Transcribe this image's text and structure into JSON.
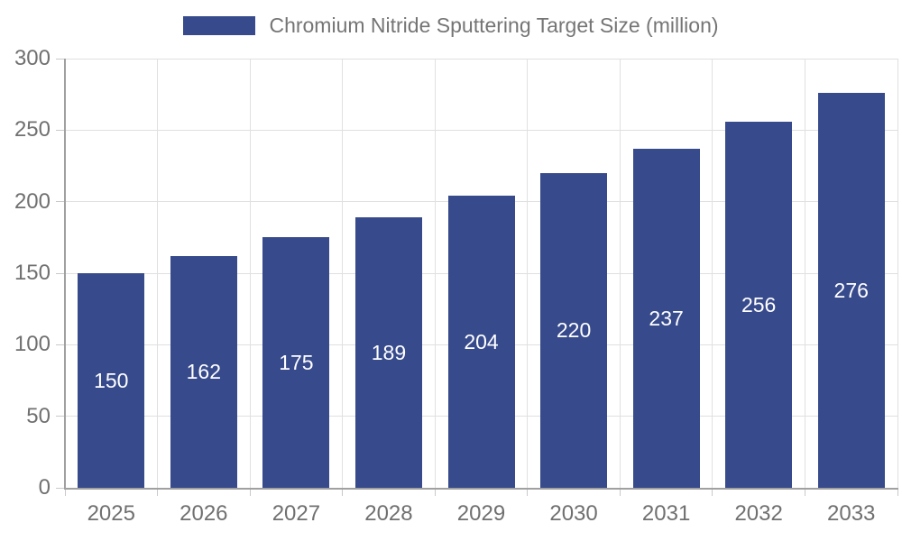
{
  "chart_data": {
    "type": "bar",
    "title": "Chromium Nitride Sputtering Target Size (million)",
    "legend_entries": [
      "Chromium Nitride Sputtering Target Size (million)"
    ],
    "legend_position": "top-center",
    "categories": [
      "2025",
      "2026",
      "2027",
      "2028",
      "2029",
      "2030",
      "2031",
      "2032",
      "2033"
    ],
    "values": [
      150,
      162,
      175,
      189,
      204,
      220,
      237,
      256,
      276
    ],
    "xlabel": "",
    "ylabel": "",
    "ylim": [
      0,
      300
    ],
    "yticks": [
      0,
      50,
      100,
      150,
      200,
      250,
      300
    ],
    "grid": true,
    "value_labels": "inside-center",
    "colors": {
      "bar": "#374A8C",
      "grid": "#e0e0e0",
      "axis": "#a0a0a0",
      "tick": "#c9c9c9",
      "tick_label": "#707070",
      "legend_text": "#757575",
      "value_label": "#ffffff",
      "background": "#ffffff"
    }
  }
}
